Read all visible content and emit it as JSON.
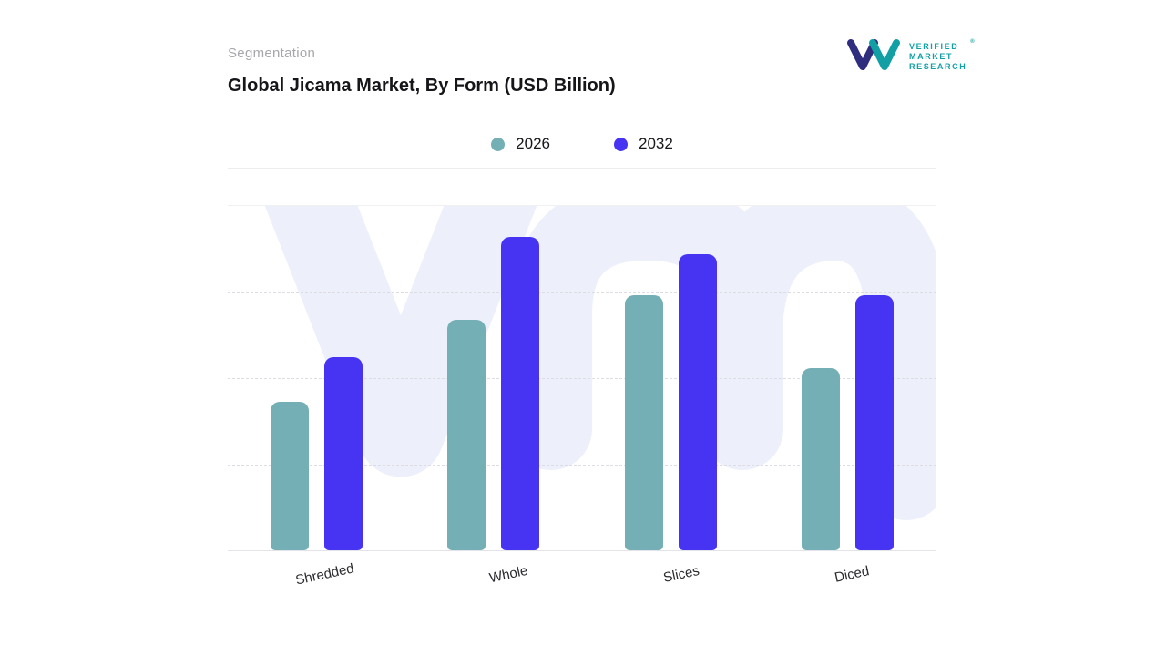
{
  "header": {
    "eyebrow": "Segmentation",
    "title": "Global Jicama Market, By Form (USD Billion)"
  },
  "logo": {
    "line1": "VERIFIED",
    "line2": "MARKET",
    "line3": "RESEARCH",
    "registered": "®",
    "brand_teal": "#12a0a5",
    "brand_navy": "#2f2d7e"
  },
  "colors": {
    "series_2026": "#73afb4",
    "series_2032": "#4733f2",
    "watermark": "#edf0fb",
    "gridline": "#dcdce2"
  },
  "chart_data": {
    "type": "bar",
    "title": "Global Jicama Market, By Form (USD Billion)",
    "categories": [
      "Shredded",
      "Whole",
      "Slices",
      "Diced"
    ],
    "series": [
      {
        "name": "2026",
        "color": "#73afb4",
        "values": [
          4.3,
          6.7,
          7.4,
          5.3
        ]
      },
      {
        "name": "2032",
        "color": "#4733f2",
        "values": [
          5.6,
          9.1,
          8.6,
          7.4
        ]
      }
    ],
    "xlabel": "",
    "ylabel": "USD Billion",
    "ylim": [
      0,
      10
    ],
    "grid": "horizontal-dashed",
    "legend_position": "top-center"
  }
}
